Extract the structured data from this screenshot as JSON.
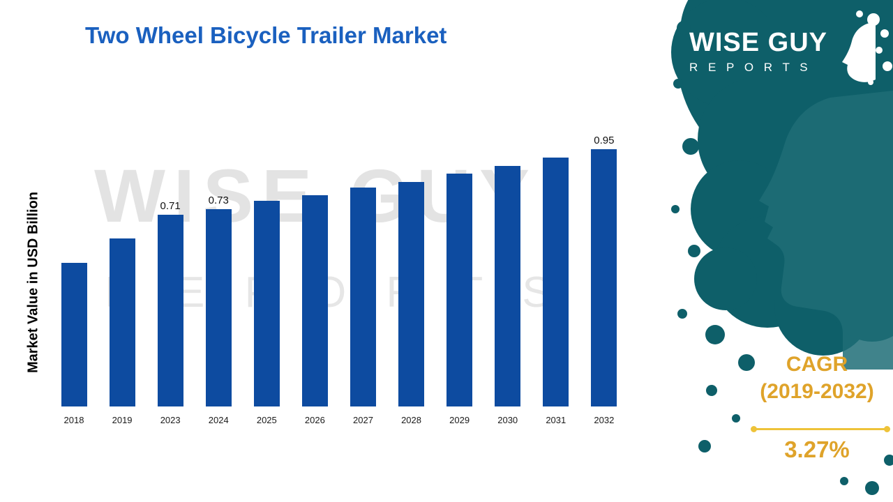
{
  "header": {
    "title": "Two Wheel Bicycle Trailer Market"
  },
  "logo": {
    "line1": "WISE GUY",
    "line2": "R E P O R T S"
  },
  "watermark": {
    "line1": "WISE GUY",
    "line2": "R E P O R T S"
  },
  "cagr": {
    "line1": "CAGR",
    "line2": "(2019-2032)",
    "value": "3.27%"
  },
  "chart_data": {
    "type": "bar",
    "title": "Two Wheel Bicycle Trailer Market",
    "xlabel": "",
    "ylabel": "Market Value in USD Billion",
    "categories": [
      "2018",
      "2019",
      "2023",
      "2024",
      "2025",
      "2026",
      "2027",
      "2028",
      "2029",
      "2030",
      "2031",
      "2032"
    ],
    "values": [
      0.53,
      0.62,
      0.71,
      0.73,
      0.76,
      0.78,
      0.81,
      0.83,
      0.86,
      0.89,
      0.92,
      0.95
    ],
    "bar_labels": [
      "",
      "",
      "0.71",
      "0.73",
      "",
      "",
      "",
      "",
      "",
      "",
      "",
      "0.95"
    ],
    "bar_color": "#0d4ba0",
    "ylim": [
      0,
      1.0
    ],
    "grid": false,
    "legend": false
  },
  "colors": {
    "title_blue": "#1a60bf",
    "bar_blue": "#0d4ba0",
    "teal": "#0e5f69",
    "gold": "#dfa32a",
    "watermark_gray": "#c2c2c2"
  }
}
